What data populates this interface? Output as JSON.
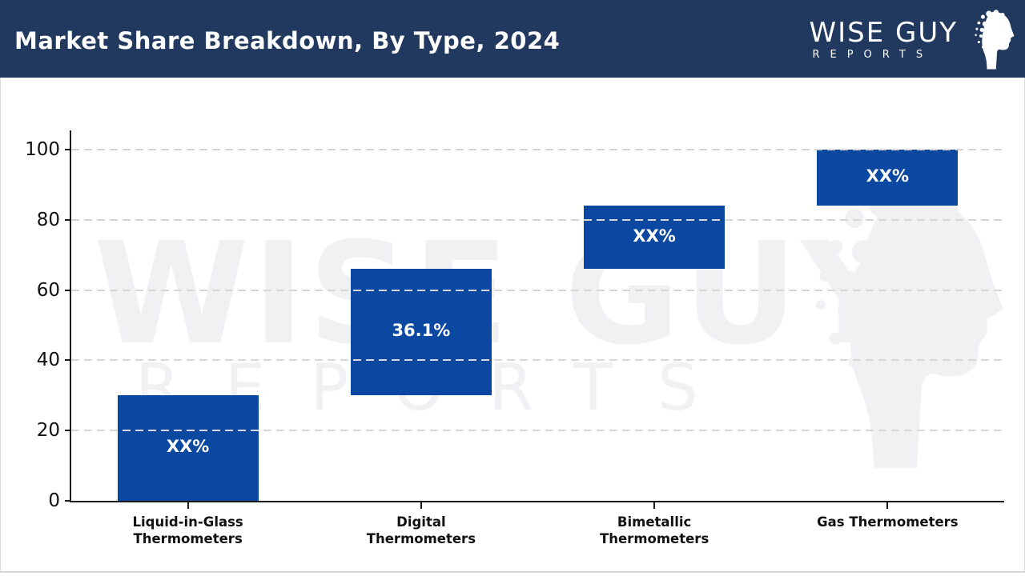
{
  "header": {
    "title": "Market Share Breakdown, By Type, 2024",
    "logo": {
      "wordmark": "WISE GUY",
      "subtext": "REPORTS"
    }
  },
  "watermark": {
    "wordmark": "WISE GUY",
    "subtext": "REPORTS"
  },
  "chart_data": {
    "type": "bar",
    "variant": "floating-waterfall",
    "title": "Market Share Breakdown, By Type, 2024",
    "categories": [
      "Liquid-in-Glass\nThermometers",
      "Digital\nThermometers",
      "Bimetallic\nThermometers",
      "Gas Thermometers"
    ],
    "bars": [
      {
        "category": "Liquid-in-Glass Thermometers",
        "base": 0,
        "top": 30,
        "label": "XX%"
      },
      {
        "category": "Digital Thermometers",
        "base": 30,
        "top": 66.1,
        "label": "36.1%"
      },
      {
        "category": "Bimetallic Thermometers",
        "base": 66.1,
        "top": 84,
        "label": "XX%"
      },
      {
        "category": "Gas Thermometers",
        "base": 84,
        "top": 100,
        "label": "XX%"
      }
    ],
    "ylim": [
      0,
      100
    ],
    "yticks": [
      0,
      20,
      40,
      60,
      80,
      100
    ],
    "xlabel": "",
    "ylabel": "",
    "grid": {
      "horizontal": true,
      "style": "dashed"
    },
    "colors": {
      "bar": "#0a48a1",
      "header_bg": "#22395f",
      "grid": "#d7d7d7",
      "axis": "#1a1a1a",
      "bar_label": "#ffffff",
      "watermark": "#f1f1f3"
    }
  }
}
